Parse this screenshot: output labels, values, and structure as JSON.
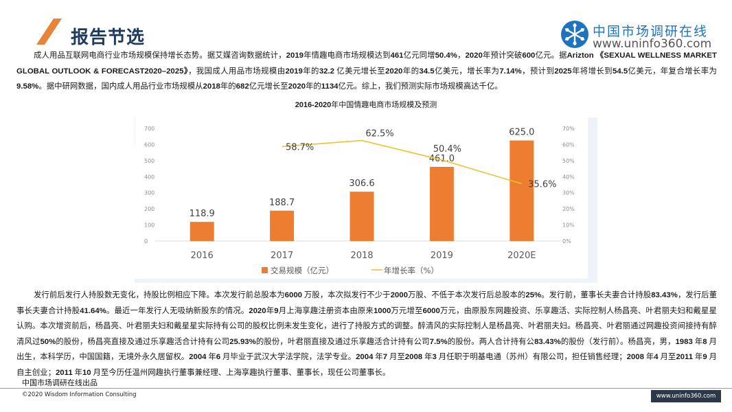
{
  "header": {
    "title": "报告节选",
    "accent_color": "#e8833a",
    "logo": {
      "name_cn": "中国市场调研在线",
      "url": "www.uninfo360.com",
      "brand_color": "#1e73be"
    }
  },
  "paragraph1": [
    {
      "t": "成人用品互联网电商行业市场规模保持增长态势。据艾媒咨询数据统计，"
    },
    {
      "t": "2019",
      "b": true
    },
    {
      "t": "年情趣电商市场规模达到"
    },
    {
      "t": "461",
      "b": true
    },
    {
      "t": "亿元同增"
    },
    {
      "t": "50.4%",
      "b": true
    },
    {
      "t": "，"
    },
    {
      "t": "2020",
      "b": true
    },
    {
      "t": "年预计突破"
    },
    {
      "t": "600",
      "b": true
    },
    {
      "t": "亿元。据"
    },
    {
      "t": "Arizton 《SEXUAL WELLNESS MARKET GLOBAL OUTLOOK & FORECAST2020–2025》",
      "b": true
    },
    {
      "t": "，我国成人用品市场规模由"
    },
    {
      "t": "2019",
      "b": true
    },
    {
      "t": "年的"
    },
    {
      "t": "32.2",
      "b": true
    },
    {
      "t": " 亿美元增长至"
    },
    {
      "t": "2020",
      "b": true
    },
    {
      "t": "年的"
    },
    {
      "t": "34.5",
      "b": true
    },
    {
      "t": "亿美元，增长率为"
    },
    {
      "t": "7.14%",
      "b": true
    },
    {
      "t": "，预计到"
    },
    {
      "t": "2025",
      "b": true
    },
    {
      "t": "年将增长到"
    },
    {
      "t": "54.5",
      "b": true
    },
    {
      "t": "亿美元，年复合增长率为"
    },
    {
      "t": "9.58%",
      "b": true
    },
    {
      "t": "。据中研网数据，国内成人用品行业市场规模从"
    },
    {
      "t": "2018",
      "b": true
    },
    {
      "t": "年的"
    },
    {
      "t": "682",
      "b": true
    },
    {
      "t": "亿元增长至"
    },
    {
      "t": "2020",
      "b": true
    },
    {
      "t": "年的"
    },
    {
      "t": "1134",
      "b": true
    },
    {
      "t": "亿元。综上，我们预测实际市场规模高达千亿。"
    }
  ],
  "chart_title_year": "2016-2020",
  "chart_title_text": "年中国情趣电商市场规模及预测",
  "chart_data": {
    "type": "bar",
    "title": "2016-2020年中国情趣电商市场规模及预测",
    "categories": [
      "2016",
      "2017",
      "2018",
      "2019",
      "2020E"
    ],
    "series": [
      {
        "name": "交易规模（亿元）",
        "type": "bar",
        "axis": "left",
        "color": "#ed7d31",
        "values": [
          118.9,
          188.7,
          306.6,
          461.0,
          625.0
        ],
        "labels": [
          "118.9",
          "188.7",
          "306.6",
          "461.0",
          "625.0"
        ]
      },
      {
        "name": "年增长率（%）",
        "type": "line",
        "axis": "right",
        "color": "#f2c12e",
        "values": [
          null,
          58.7,
          62.5,
          50.4,
          35.6
        ],
        "labels": [
          "",
          "58.7%",
          "62.5%",
          "50.4%",
          "35.6%"
        ]
      }
    ],
    "y_left": {
      "min": 0,
      "max": 700,
      "step": 100,
      "ticks": [
        "0",
        "100",
        "200",
        "300",
        "400",
        "500",
        "600",
        "700"
      ]
    },
    "y_right": {
      "min": 0,
      "max": 70,
      "step": 10,
      "ticks": [
        "0%",
        "10%",
        "20%",
        "30%",
        "40%",
        "50%",
        "60%",
        "70%"
      ]
    },
    "xlabel": "",
    "ylabel": "",
    "grid": false,
    "legend": "bottom"
  },
  "paragraph2": [
    {
      "t": "发行前后发行人持股数无变化，持股比例相应下降。本次发行前总股本为"
    },
    {
      "t": "6000",
      "b": true
    },
    {
      "t": " 万股，本次拟发行不少于"
    },
    {
      "t": "2000",
      "b": true
    },
    {
      "t": "万股、不低于本次发行后总股本的"
    },
    {
      "t": "25%",
      "b": true
    },
    {
      "t": "。发行前，董事长夫妻合计持股"
    },
    {
      "t": "83.43%",
      "b": true
    },
    {
      "t": "，发行后董事长夫妻合计持股"
    },
    {
      "t": "41.64%",
      "b": true
    },
    {
      "t": "。最近一年发行人无吸纳新股东的情况。"
    },
    {
      "t": "2020",
      "b": true
    },
    {
      "t": "年"
    },
    {
      "t": "9",
      "b": true
    },
    {
      "t": "月上海享趣注册资本由原来"
    },
    {
      "t": "1000",
      "b": true
    },
    {
      "t": "万元增至"
    },
    {
      "t": "6000",
      "b": true
    },
    {
      "t": "万元，由原股东网趣投资、乐享趣活、实际控制人杨昌亮、叶君丽夫妇和戴星星认购。本次增资前后，杨昌亮、叶君丽夫妇和戴星星实际持有公司的股权比例未发生变化，进行了持股方式的调整。醉清风的实际控制人是杨昌亮、叶君丽夫妇。杨昌亮、叶君丽通过网趣投资间接持有醉清风过"
    },
    {
      "t": "50%",
      "b": true
    },
    {
      "t": "的股份，杨昌亮直接及通过乐享趣活合计持有公司"
    },
    {
      "t": "25.93%",
      "b": true
    },
    {
      "t": "的股份，叶君丽直接及通过乐享趣活合计持有公司"
    },
    {
      "t": "7.5%",
      "b": true
    },
    {
      "t": "的股份。两人合计持有公"
    },
    {
      "t": "83.43%",
      "b": true
    },
    {
      "t": "的股份（发行前）。杨昌亮，男，"
    },
    {
      "t": "1983",
      "b": true
    },
    {
      "t": " 年"
    },
    {
      "t": "8",
      "b": true
    },
    {
      "t": " 月出生，本科学历，中国国籍，无境外永久居留权。"
    },
    {
      "t": "2004",
      "b": true
    },
    {
      "t": " 年"
    },
    {
      "t": "6",
      "b": true
    },
    {
      "t": " 月毕业于武汉大学法学院，法学专业。"
    },
    {
      "t": "2004",
      "b": true
    },
    {
      "t": " 年"
    },
    {
      "t": "7",
      "b": true
    },
    {
      "t": " 月至"
    },
    {
      "t": "2008",
      "b": true
    },
    {
      "t": " 年"
    },
    {
      "t": "3",
      "b": true
    },
    {
      "t": " 月任职于明基电通（苏州）有限公司，担任销售经理；"
    },
    {
      "t": "2008",
      "b": true
    },
    {
      "t": " 年"
    },
    {
      "t": "4",
      "b": true
    },
    {
      "t": " 月至"
    },
    {
      "t": "2011",
      "b": true
    },
    {
      "t": " 年"
    },
    {
      "t": "9",
      "b": true
    },
    {
      "t": " 月自主创业；"
    },
    {
      "t": "2011",
      "b": true
    },
    {
      "t": " 年"
    },
    {
      "t": "10",
      "b": true
    },
    {
      "t": " 月至今历任温州网趣执行董事兼经理、上海享趣执行董事、董事长，现任公司董事长。"
    }
  ],
  "footer": {
    "publisher": "中国市场调研在线出品",
    "copyright": "©2020 Wisdom Information Consulting",
    "url_badge": "www.uninfo360.com"
  }
}
